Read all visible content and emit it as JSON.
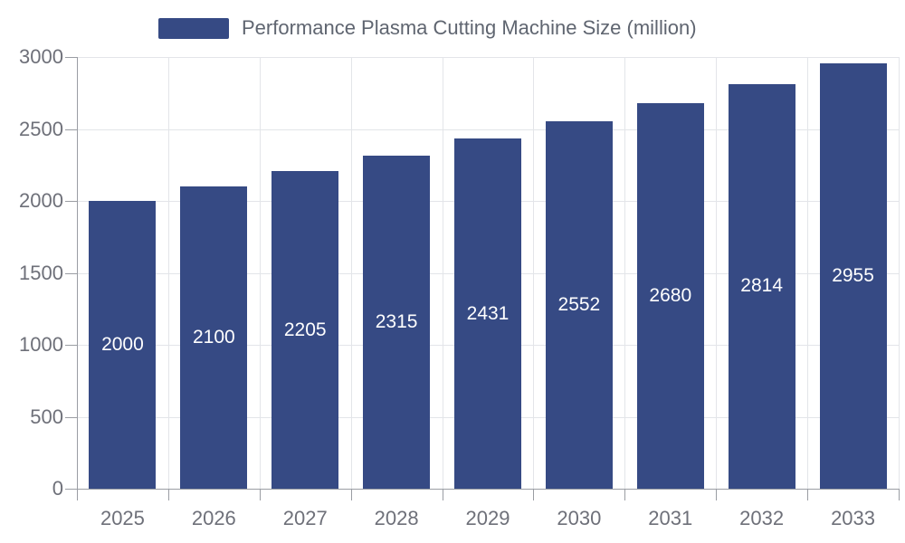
{
  "chart_data": {
    "type": "bar",
    "title": "",
    "legend": "Performance Plasma Cutting Machine Size (million)",
    "categories": [
      "2025",
      "2026",
      "2027",
      "2028",
      "2029",
      "2030",
      "2031",
      "2032",
      "2033"
    ],
    "values": [
      2000,
      2100,
      2205,
      2315,
      2431,
      2552,
      2680,
      2814,
      2955
    ],
    "xlabel": "",
    "ylabel": "",
    "ylim": [
      0,
      3000
    ],
    "yticks": [
      0,
      500,
      1000,
      1500,
      2000,
      2500,
      3000
    ],
    "grid": true,
    "legend_position": "top",
    "value_labels": "inside-center",
    "colors": {
      "bar": "#364a84",
      "bar_value_label": "#ffffff",
      "axis": "#9a9da3",
      "gridline": "#e3e5e9",
      "tick_label": "#6e7079",
      "legend_text": "#5f6570",
      "background": "#ffffff"
    }
  }
}
